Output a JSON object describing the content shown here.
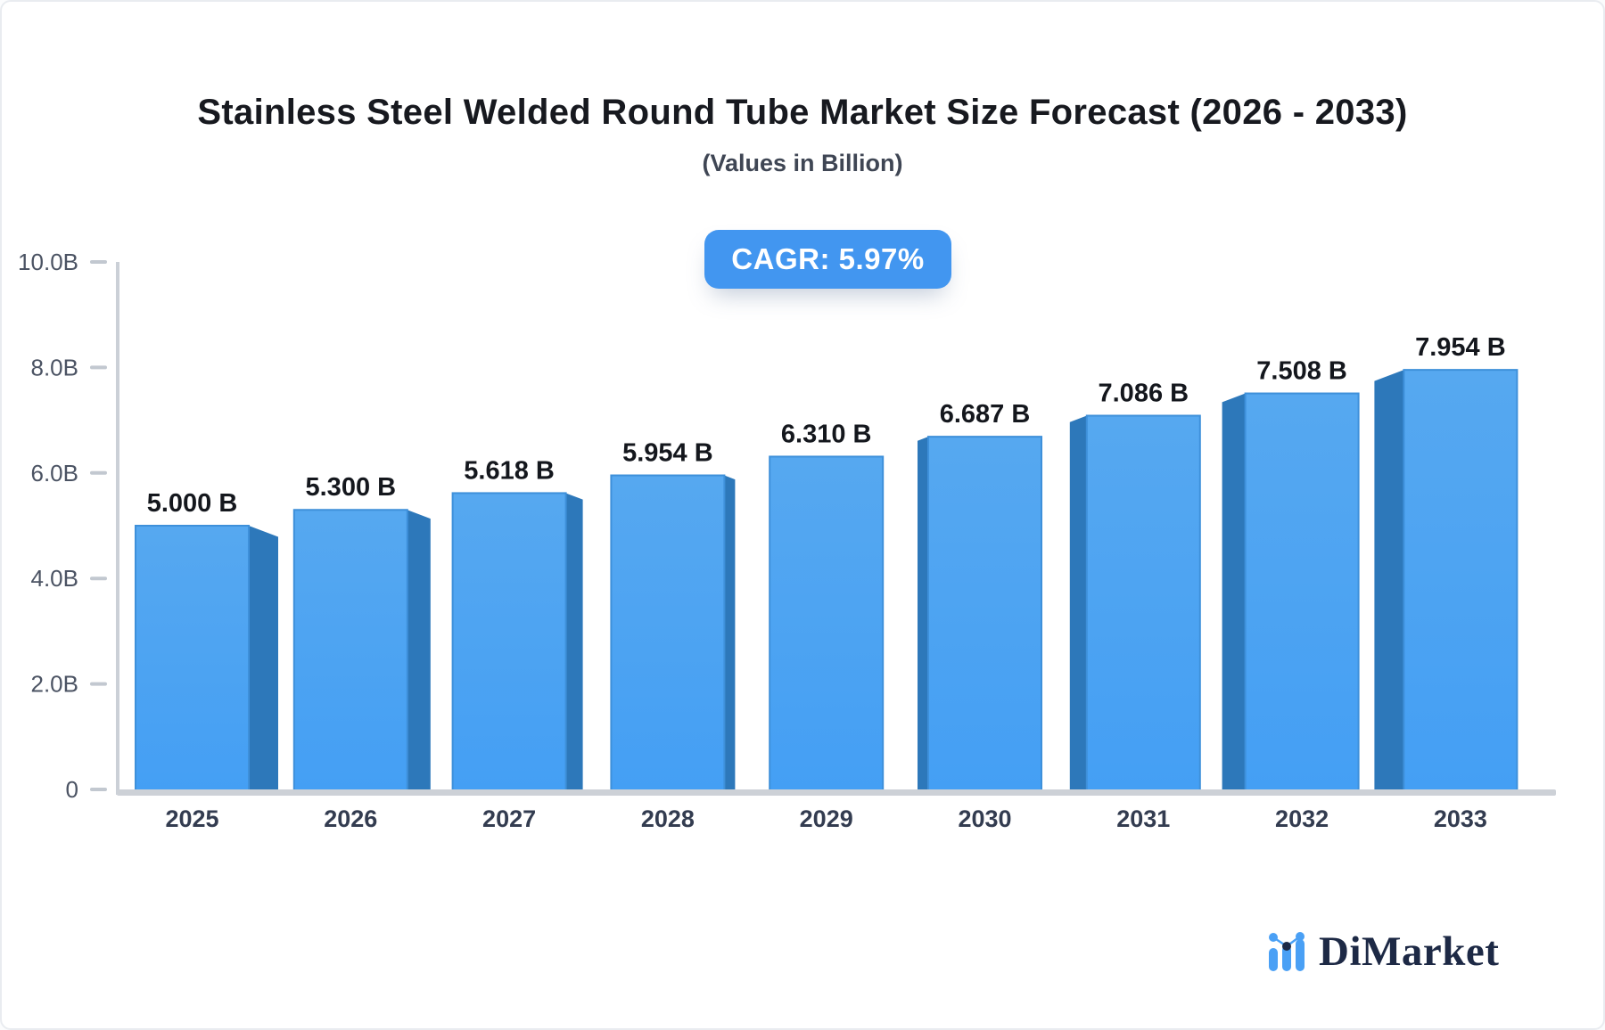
{
  "header": {
    "title": "Stainless Steel Welded Round Tube Market Size Forecast (2026 - 2033)",
    "subtitle": "(Values in Billion)"
  },
  "badge": {
    "label": "CAGR: 5.97%"
  },
  "chart_data": {
    "type": "bar",
    "title": "Stainless Steel Welded Round Tube Market Size Forecast (2026 - 2033)",
    "subtitle": "(Values in Billion)",
    "unit": "Billion",
    "cagr_label": "CAGR: 5.97%",
    "categories": [
      "2025",
      "2026",
      "2027",
      "2028",
      "2029",
      "2030",
      "2031",
      "2032",
      "2033"
    ],
    "values": [
      5.0,
      5.3,
      5.618,
      5.954,
      6.31,
      6.687,
      7.086,
      7.508,
      7.954
    ],
    "value_labels": [
      "5.000 B",
      "5.300 B",
      "5.618 B",
      "5.954 B",
      "6.310 B",
      "6.687 B",
      "7.086 B",
      "7.508 B",
      "7.954 B"
    ],
    "ylim": [
      0,
      10
    ],
    "yticks": [
      0,
      2,
      4,
      6,
      8,
      10
    ],
    "ytick_labels": [
      "0",
      "2.0B",
      "4.0B",
      "6.0B",
      "8.0B",
      "10.0B"
    ],
    "grid": false,
    "legend": false,
    "bar_style": "3d-extruded, extrusion faces outward from center bar (2029)"
  },
  "branding": {
    "logo_text": "DiMarket"
  },
  "colors": {
    "badge_bg": "#4296f0",
    "bar_face_top": "#56a8f0",
    "bar_face_bottom": "#449ff4",
    "bar_side": "#2d78ba",
    "bar_border": "#3e90da",
    "value_label": "#14171d",
    "x_label": "#333c50",
    "y_label": "#4b5363",
    "tick_dash": "#c2c8d0",
    "axis_line": "#cbd0d7",
    "floor": "#cdd1d7",
    "logo_blue": "#4aa0f5",
    "logo_navy": "#1d2945"
  }
}
